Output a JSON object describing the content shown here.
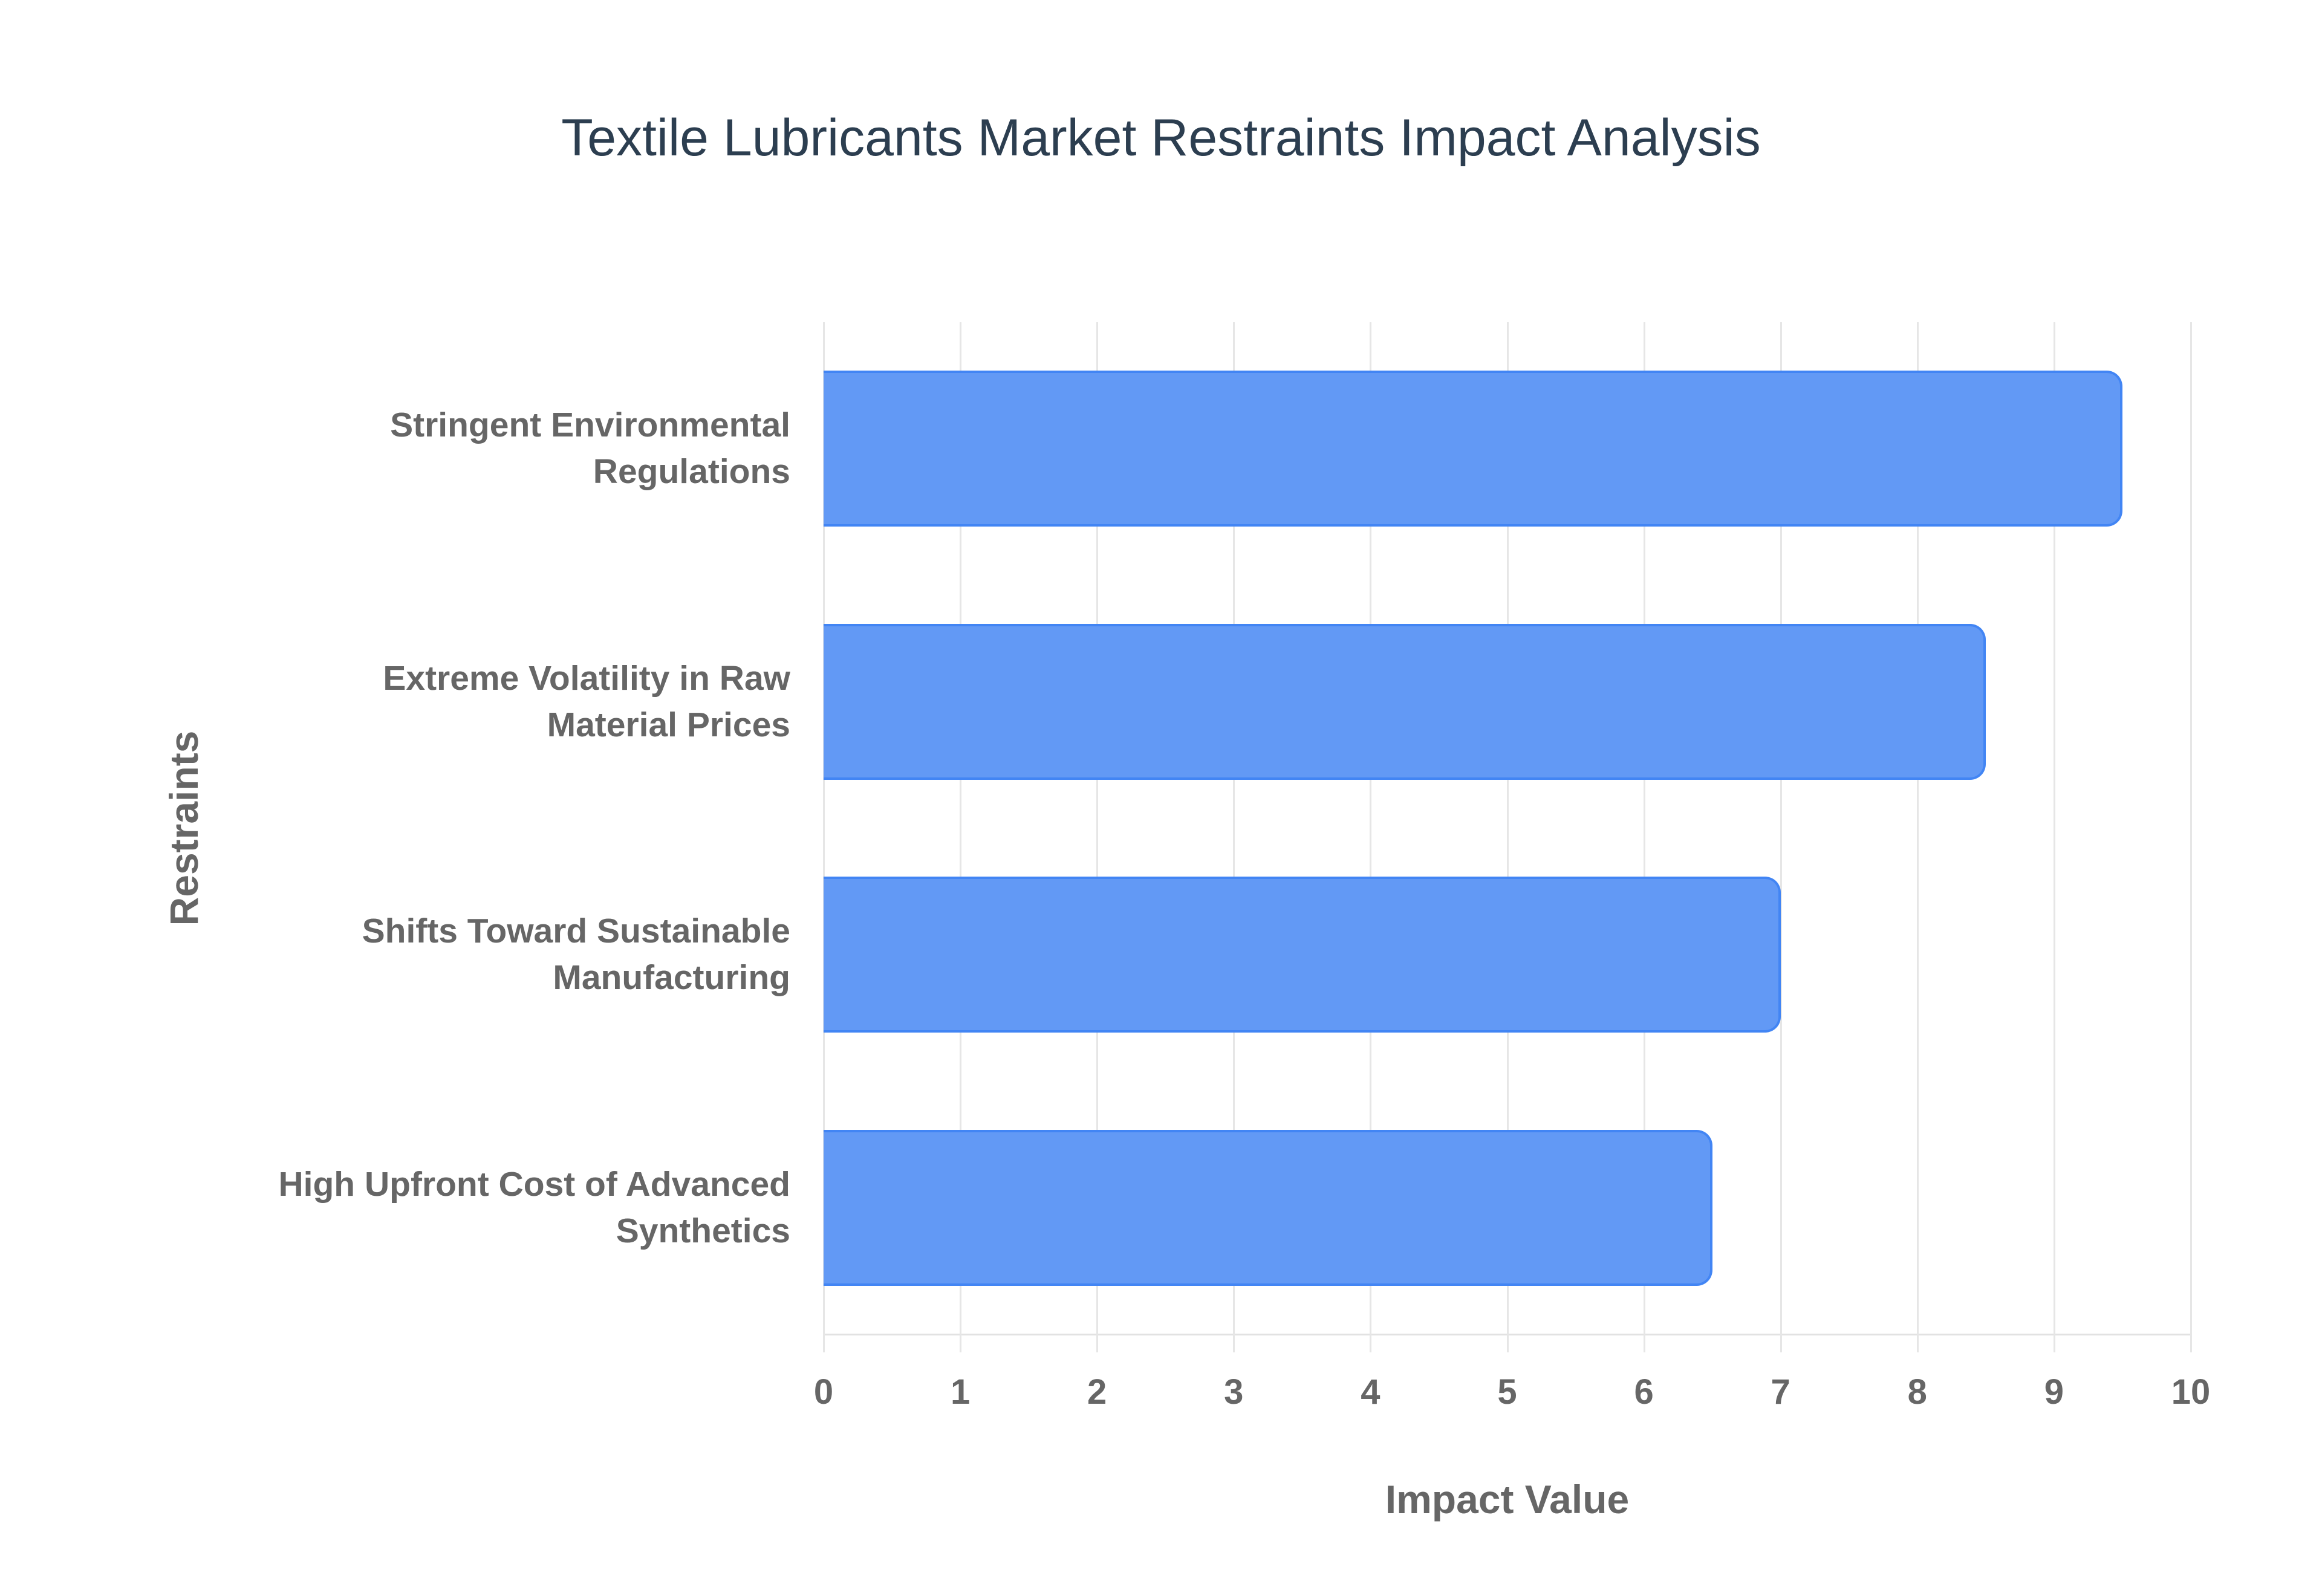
{
  "chart_data": {
    "type": "bar",
    "orientation": "horizontal",
    "title": "Textile Lubricants Market Restraints Impact Analysis",
    "xlabel": "Impact Value",
    "ylabel": "Restraints",
    "xlim": [
      0,
      10
    ],
    "xticks": [
      "0",
      "1",
      "2",
      "3",
      "4",
      "5",
      "6",
      "7",
      "8",
      "9",
      "10"
    ],
    "grid": true,
    "legend": null,
    "categories": [
      [
        "Stringent Environmental",
        "Regulations"
      ],
      [
        "Extreme Volatility in Raw",
        "Material Prices"
      ],
      [
        "Shifts Toward Sustainable",
        "Manufacturing"
      ],
      [
        "High Upfront Cost of Advanced",
        "Synthetics"
      ]
    ],
    "category_names": [
      "Stringent Environmental Regulations",
      "Extreme Volatility in Raw Material Prices",
      "Shifts Toward Sustainable Manufacturing",
      "High Upfront Cost of Advanced Synthetics"
    ],
    "values": [
      9.5,
      8.5,
      7.0,
      6.5
    ],
    "colors": {
      "bar_fill": "#6299f5",
      "bar_border": "#4285f4",
      "title": "#2c3e50",
      "axis_text": "#666666",
      "grid": "#e6e6e6"
    }
  }
}
